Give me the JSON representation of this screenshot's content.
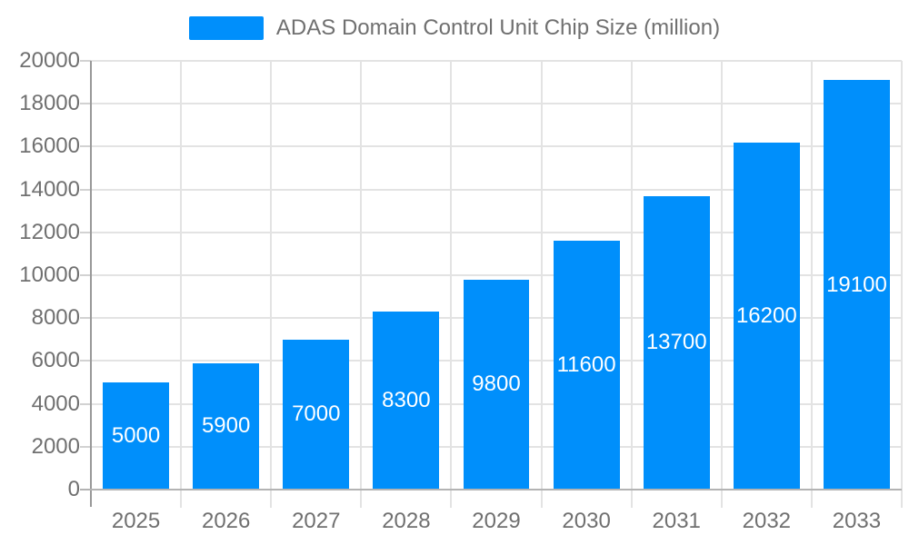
{
  "legend": {
    "series_label": "ADAS Domain Control Unit Chip Size (million)"
  },
  "colors": {
    "bar": "#008FFB",
    "grid": "#e3e3e3",
    "x_axis_line": "#b3b3b3",
    "y_axis_line": "#999999",
    "tick": "#d2d2d2",
    "axis_text": "#707070",
    "legend_text": "#707070",
    "value_label_text": "#ffffff"
  },
  "chart_data": {
    "type": "bar",
    "title": "ADAS Domain Control Unit Chip Size (million)",
    "series_name": "ADAS Domain Control Unit Chip Size (million)",
    "categories": [
      "2025",
      "2026",
      "2027",
      "2028",
      "2029",
      "2030",
      "2031",
      "2032",
      "2033"
    ],
    "values": [
      5000,
      5900,
      7000,
      8300,
      9800,
      11600,
      13700,
      16200,
      19100
    ],
    "xlabel": "",
    "ylabel": "",
    "ylim": [
      0,
      20000
    ],
    "ytick_step": 2000,
    "ytick_labels": [
      "0",
      "2000",
      "4000",
      "6000",
      "8000",
      "10000",
      "12000",
      "14000",
      "16000",
      "18000",
      "20000"
    ],
    "grid": true,
    "legend_position": "top",
    "value_labels": "inside-center",
    "bar_width_fraction": 0.736
  }
}
